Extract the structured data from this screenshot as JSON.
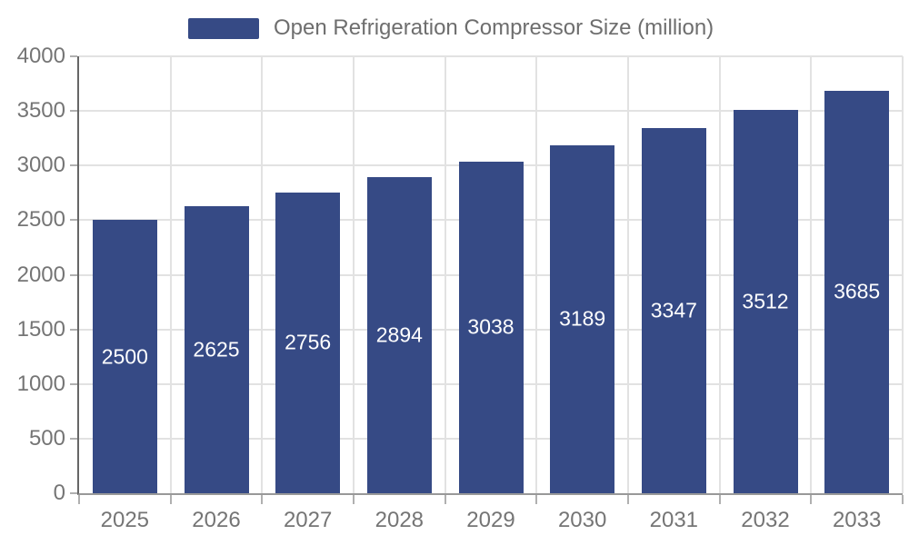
{
  "legend": {
    "label": "Open Refrigeration Compressor Size (million)"
  },
  "chart_data": {
    "type": "bar",
    "title": "Open Refrigeration Compressor Size (million)",
    "categories": [
      "2025",
      "2026",
      "2027",
      "2028",
      "2029",
      "2030",
      "2031",
      "2032",
      "2033"
    ],
    "series": [
      {
        "name": "Open Refrigeration Compressor Size (million)",
        "values": [
          2500,
          2625,
          2756,
          2894,
          3038,
          3189,
          3347,
          3512,
          3685
        ]
      }
    ],
    "values": [
      2500,
      2625,
      2756,
      2894,
      3038,
      3189,
      3347,
      3512,
      3685
    ],
    "xlabel": "",
    "ylabel": "",
    "ylim": [
      0,
      4000
    ],
    "yticks": [
      0,
      500,
      1000,
      1500,
      2000,
      2500,
      3000,
      3500,
      4000
    ],
    "grid": true,
    "legend_position": "top",
    "bar_labels_inside": true
  },
  "colors": {
    "bar": "#364A85",
    "bar_label": "#FFFFFF",
    "grid_line": "#E2E2E2",
    "y_axis_line": "#666666",
    "x_axis_line": "#999999",
    "tick_mark": "#B0B0B0",
    "axis_label": "#757575",
    "legend_text": "#6E6E6E",
    "background": "#FFFFFF"
  }
}
